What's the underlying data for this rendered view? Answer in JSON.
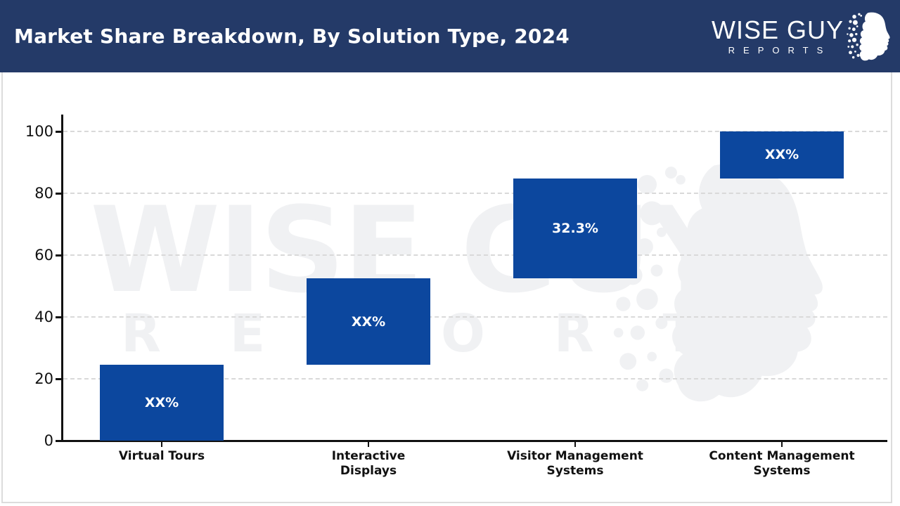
{
  "header": {
    "title": "Market Share Breakdown, By Solution Type, 2024",
    "logo": {
      "line1": "WISE GUY",
      "line2": "REPORTS"
    }
  },
  "watermark": {
    "line1": "WISE GUY",
    "line2": "R E P O R T S"
  },
  "colors": {
    "header_bg": "#243a68",
    "bar": "#0c479e",
    "grid": "#d9d9d9",
    "axis": "#111111",
    "watermark": "#f0f1f3",
    "bar_label": "#ffffff",
    "title_text": "#ffffff"
  },
  "icons": {
    "brand_face": "dotted-head-profile-icon"
  },
  "chart_data": {
    "type": "bar",
    "subtype": "waterfall-stacked-segments",
    "title": "Market Share Breakdown, By Solution Type, 2024",
    "categories": [
      "Virtual Tours",
      "Interactive\nDisplays",
      "Visitor Management\nSystems",
      "Content Management\nSystems"
    ],
    "segments": [
      {
        "category": "Virtual Tours",
        "start": 0,
        "end": 24.5,
        "value_label": "XX%"
      },
      {
        "category": "Interactive\nDisplays",
        "start": 24.5,
        "end": 52.5,
        "value_label": "XX%"
      },
      {
        "category": "Visitor Management\nSystems",
        "start": 52.5,
        "end": 84.8,
        "value_label": "32.3%"
      },
      {
        "category": "Content Management\nSystems",
        "start": 84.8,
        "end": 100,
        "value_label": "XX%"
      }
    ],
    "yticks": [
      0,
      20,
      40,
      60,
      80,
      100
    ],
    "ylim": [
      0,
      105.5
    ],
    "xlabel": "",
    "ylabel": "",
    "grid": "horizontal-dashed",
    "legend": null
  }
}
